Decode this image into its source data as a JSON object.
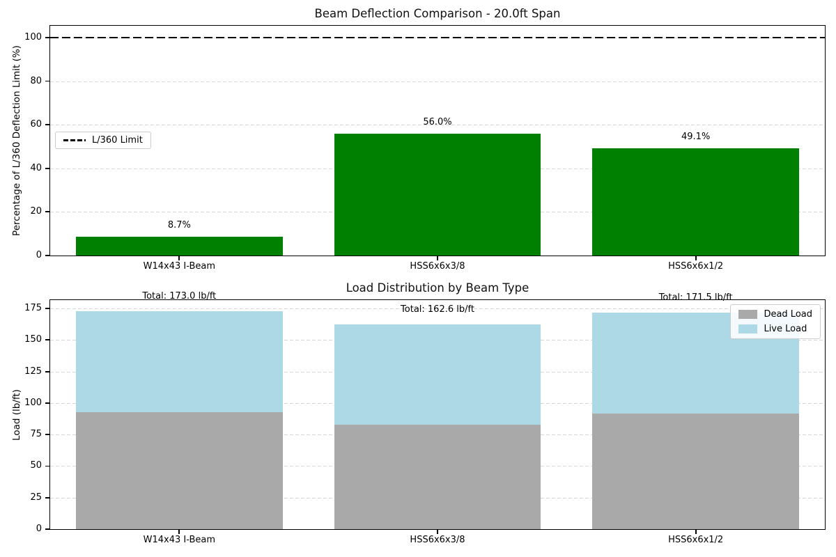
{
  "chart_data": [
    {
      "type": "bar",
      "title": "Beam Deflection Comparison - 20.0ft Span",
      "ylabel": "Percentage of L/360 Deflection Limit (%)",
      "xlabel": "",
      "categories": [
        "W14x43 I-Beam",
        "HSS6x6x3/8",
        "HSS6x6x1/2"
      ],
      "values": [
        8.7,
        56.0,
        49.1
      ],
      "bar_labels": [
        "8.7%",
        "56.0%",
        "49.1%"
      ],
      "bar_color": "#008000",
      "yticks": [
        0,
        20,
        40,
        60,
        80,
        100
      ],
      "ylim": [
        0,
        105.4
      ],
      "grid": "horizontal-dashed",
      "reference_line": {
        "value": 100,
        "label": "L/360 Limit",
        "color": "#000000",
        "style": "dashed"
      },
      "legend": {
        "position": "center-left",
        "entries": [
          {
            "label": "L/360 Limit",
            "marker": "dashed-line",
            "color": "#000000"
          }
        ]
      }
    },
    {
      "type": "bar-stacked",
      "title": "Load Distribution by Beam Type",
      "ylabel": "Load (lb/ft)",
      "xlabel": "",
      "categories": [
        "W14x43 I-Beam",
        "HSS6x6x3/8",
        "HSS6x6x1/2"
      ],
      "series": [
        {
          "name": "Dead Load",
          "color": "#a9a9a9",
          "values": [
            93.0,
            82.6,
            91.5
          ]
        },
        {
          "name": "Live Load",
          "color": "#add8e6",
          "values": [
            80.0,
            80.0,
            80.0
          ]
        }
      ],
      "totals": [
        173.0,
        162.6,
        171.5
      ],
      "total_labels": [
        "Total: 173.0 lb/ft",
        "Total: 162.6 lb/ft",
        "Total: 171.5 lb/ft"
      ],
      "yticks": [
        0,
        25,
        50,
        75,
        100,
        125,
        150,
        175
      ],
      "ylim": [
        0,
        181.7
      ],
      "grid": "horizontal-dashed",
      "legend": {
        "position": "upper-right",
        "entries": [
          {
            "label": "Dead Load",
            "marker": "patch",
            "color": "#a9a9a9"
          },
          {
            "label": "Live Load",
            "marker": "patch",
            "color": "#add8e6"
          }
        ]
      }
    }
  ]
}
